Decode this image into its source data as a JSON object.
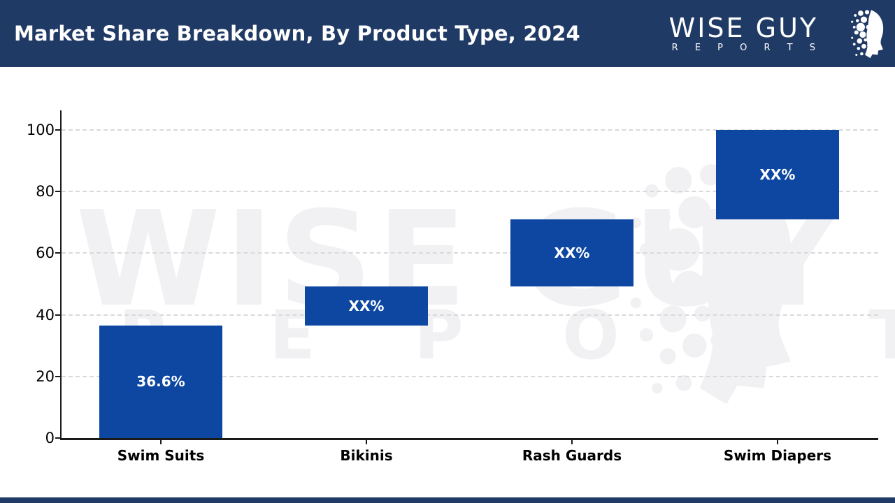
{
  "header": {
    "title": "Market Share Breakdown, By Product Type, 2024",
    "logo": {
      "line1": "WISE GUY",
      "line2": "R E P O R T S"
    }
  },
  "watermark": {
    "line1": "WISE GUY",
    "line2": "R E P O R T S"
  },
  "colors": {
    "header_bg": "#203a66",
    "footer_bg": "#203a66",
    "bar_fill": "#0d47a1",
    "bar_label": "#ffffff",
    "grid_line": "#d9d9d9",
    "axis_line": "#1a1a1a",
    "tick_label": "#000000",
    "watermark": "#f1f1f3"
  },
  "icons": {
    "logo_face": "dotted-head-profile-icon"
  },
  "chart_data": {
    "type": "bar",
    "subtype": "waterfall",
    "title": "Market Share Breakdown, By Product Type, 2024",
    "categories": [
      "Swim Suits",
      "Bikinis",
      "Rash Guards",
      "Swim Diapers"
    ],
    "segments": [
      {
        "category": "Swim Suits",
        "start": 0,
        "end": 36.6,
        "label": "36.6%"
      },
      {
        "category": "Bikinis",
        "start": 36.6,
        "end": 49.2,
        "label": "XX%"
      },
      {
        "category": "Rash Guards",
        "start": 49.2,
        "end": 70.9,
        "label": "XX%"
      },
      {
        "category": "Swim Diapers",
        "start": 70.9,
        "end": 100,
        "label": "XX%"
      }
    ],
    "ylim": [
      0,
      100
    ],
    "yticks": [
      0,
      20,
      40,
      60,
      80,
      100
    ],
    "xlabel": "",
    "ylabel": "",
    "grid": "dashed-horizontal",
    "legend": "none",
    "bar_value_labels_inside": true
  }
}
